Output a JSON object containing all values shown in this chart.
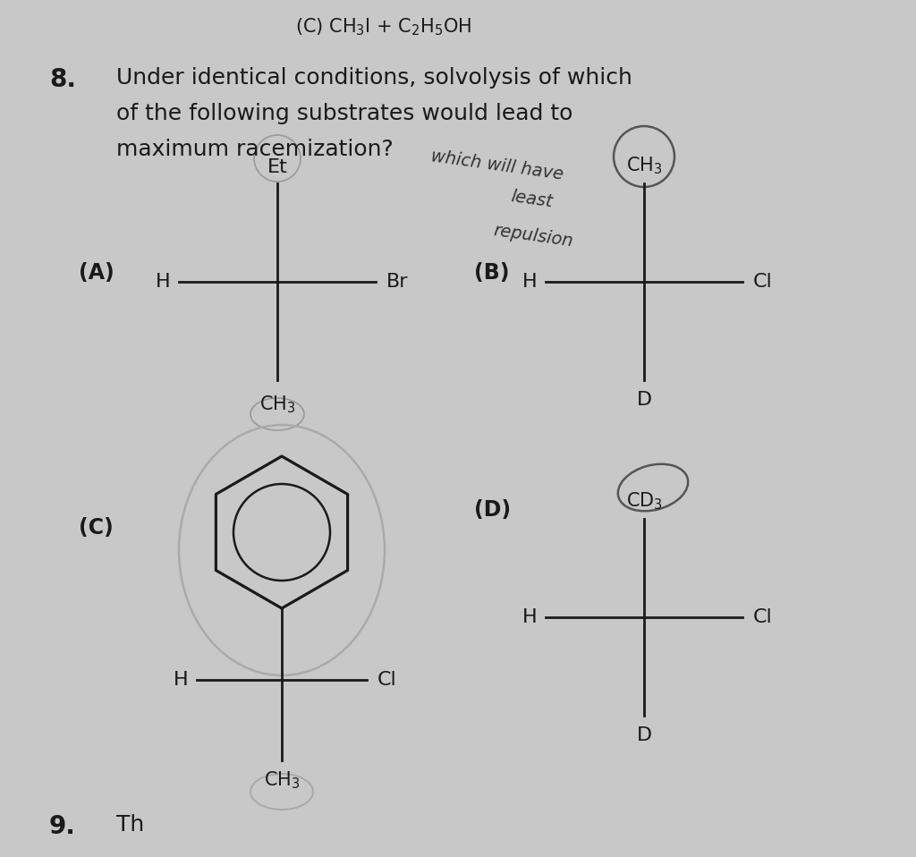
{
  "bg_color": "#c8c8c8",
  "text_color": "#1a1a1a",
  "lw": 2.0,
  "fig_w": 10.24,
  "fig_h": 9.58,
  "dpi": 100,
  "top_text": "(C) CH",
  "question_num": "8.",
  "q_line1": "Under identical conditions, solvolysis of which",
  "q_line2": "of the following substrates would lead to",
  "q_line3": "maximum racemization?",
  "hw1": "which will have",
  "hw2": "least",
  "hw3": "repulsion",
  "labelA": "(A)",
  "labelB": "(B)",
  "labelC": "(C)",
  "labelD": "(D)",
  "bottom_num": "9.",
  "bottom_txt": "Th"
}
